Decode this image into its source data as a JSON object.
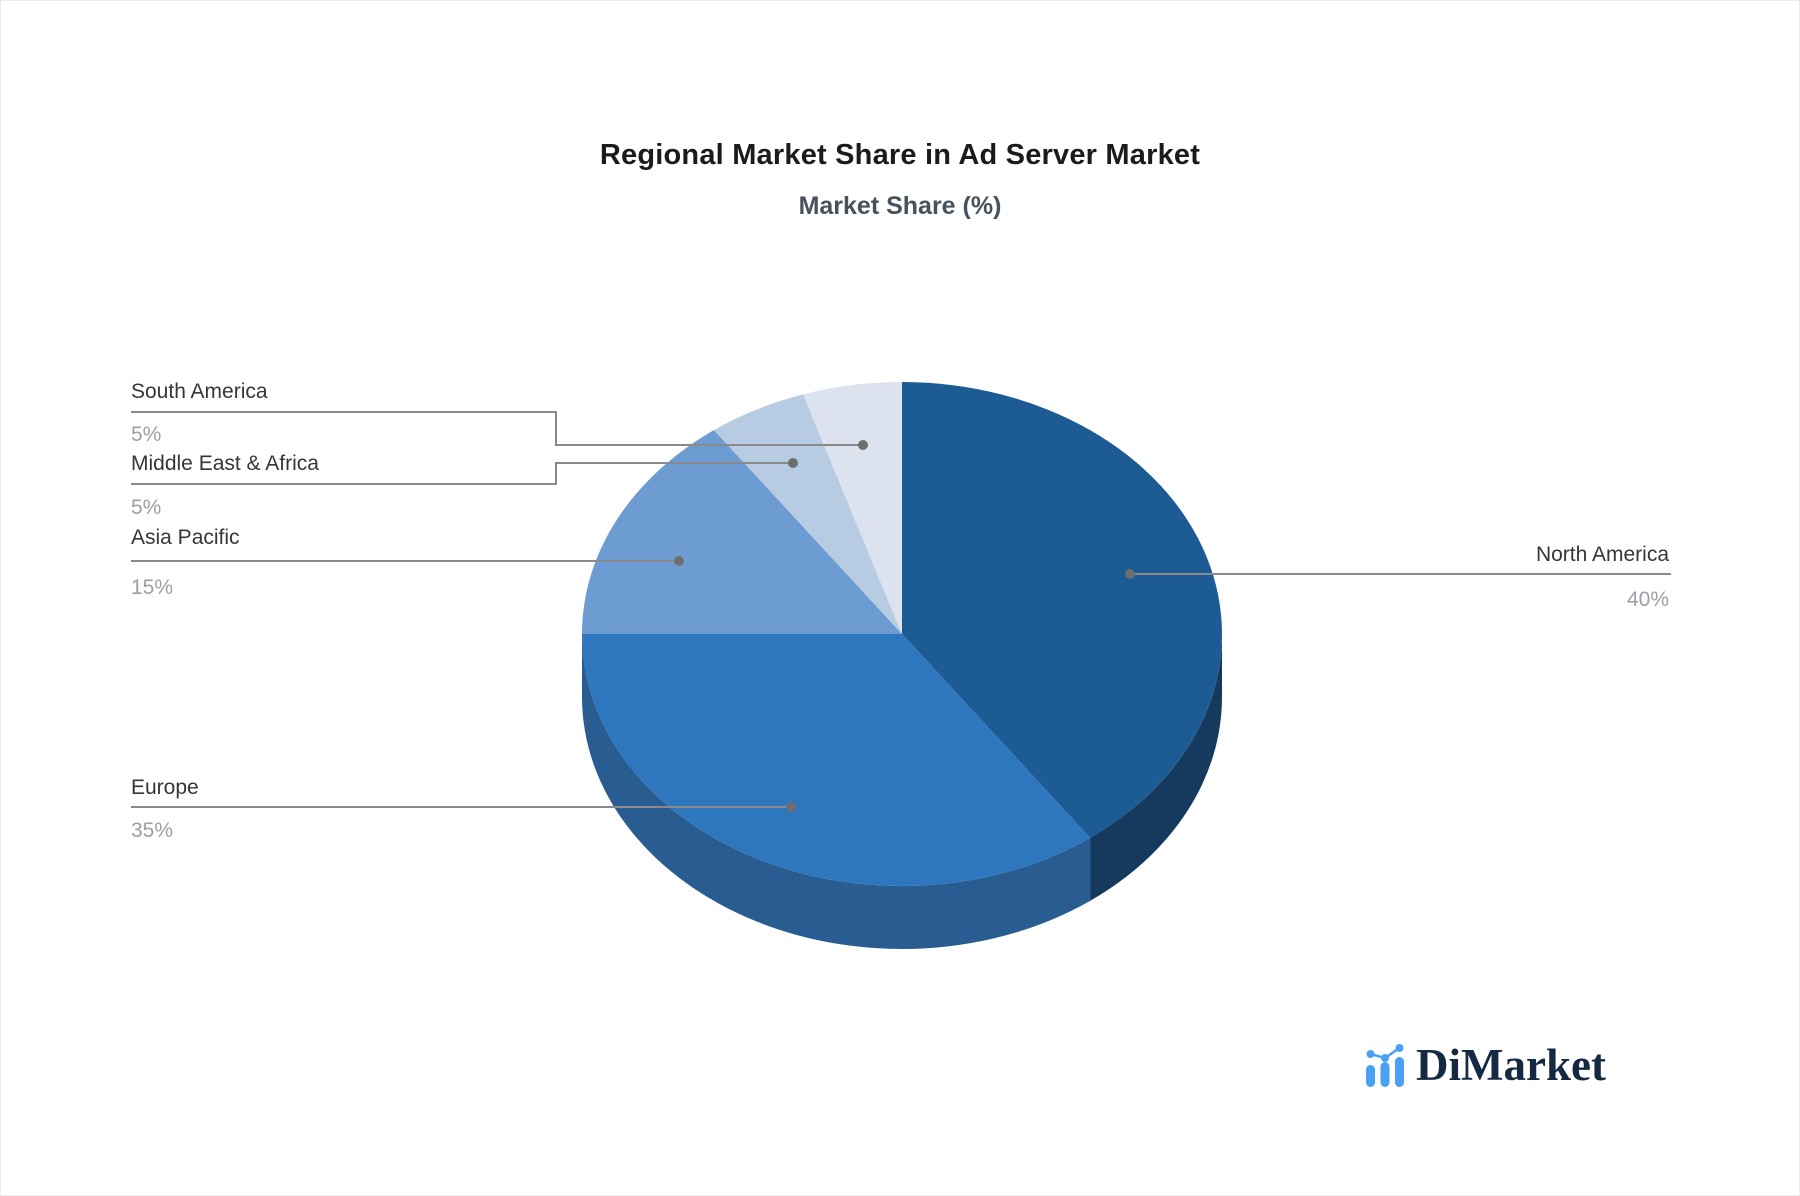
{
  "title": "Regional Market Share in Ad Server Market",
  "subtitle": "Market Share (%)",
  "brand": {
    "name": "DiMarket",
    "icon": "bar-chart-sparkline-icon",
    "icon_color": "#4AA1F3",
    "text_color": "#152A42"
  },
  "chart_data": {
    "type": "pie",
    "title": "Regional Market Share in Ad Server Market",
    "subtitle": "Market Share (%)",
    "unit": "%",
    "direction": "clockwise",
    "start_angle_deg": 0,
    "effect": "3d",
    "categories": [
      "North America",
      "Europe",
      "Asia Pacific",
      "Middle East & Africa",
      "South America"
    ],
    "values": [
      40,
      35,
      15,
      5,
      5
    ],
    "slices": [
      {
        "label": "North America",
        "value": 40,
        "display": "40%",
        "color": "#1D5B94",
        "side_color": "#153A5E"
      },
      {
        "label": "Europe",
        "value": 35,
        "display": "35%",
        "color": "#2E77BF",
        "side_color": "#295D92"
      },
      {
        "label": "Asia Pacific",
        "value": 15,
        "display": "15%",
        "color": "#6C9CD1",
        "side_color": "#567FA9"
      },
      {
        "label": "Middle East & Africa",
        "value": 5,
        "display": "5%",
        "color": "#B7CBE3",
        "side_color": "#93A9C2"
      },
      {
        "label": "South America",
        "value": 5,
        "display": "5%",
        "color": "#DCE3EE",
        "side_color": "#B3BCCA"
      }
    ],
    "label_text_color": "#363636",
    "label_value_color": "#9AA0A6",
    "callout_line_color": "#8A8A8A",
    "callout_dot_color": "#6E6E6E",
    "background": "#FFFFFF",
    "legend_position": "none"
  }
}
